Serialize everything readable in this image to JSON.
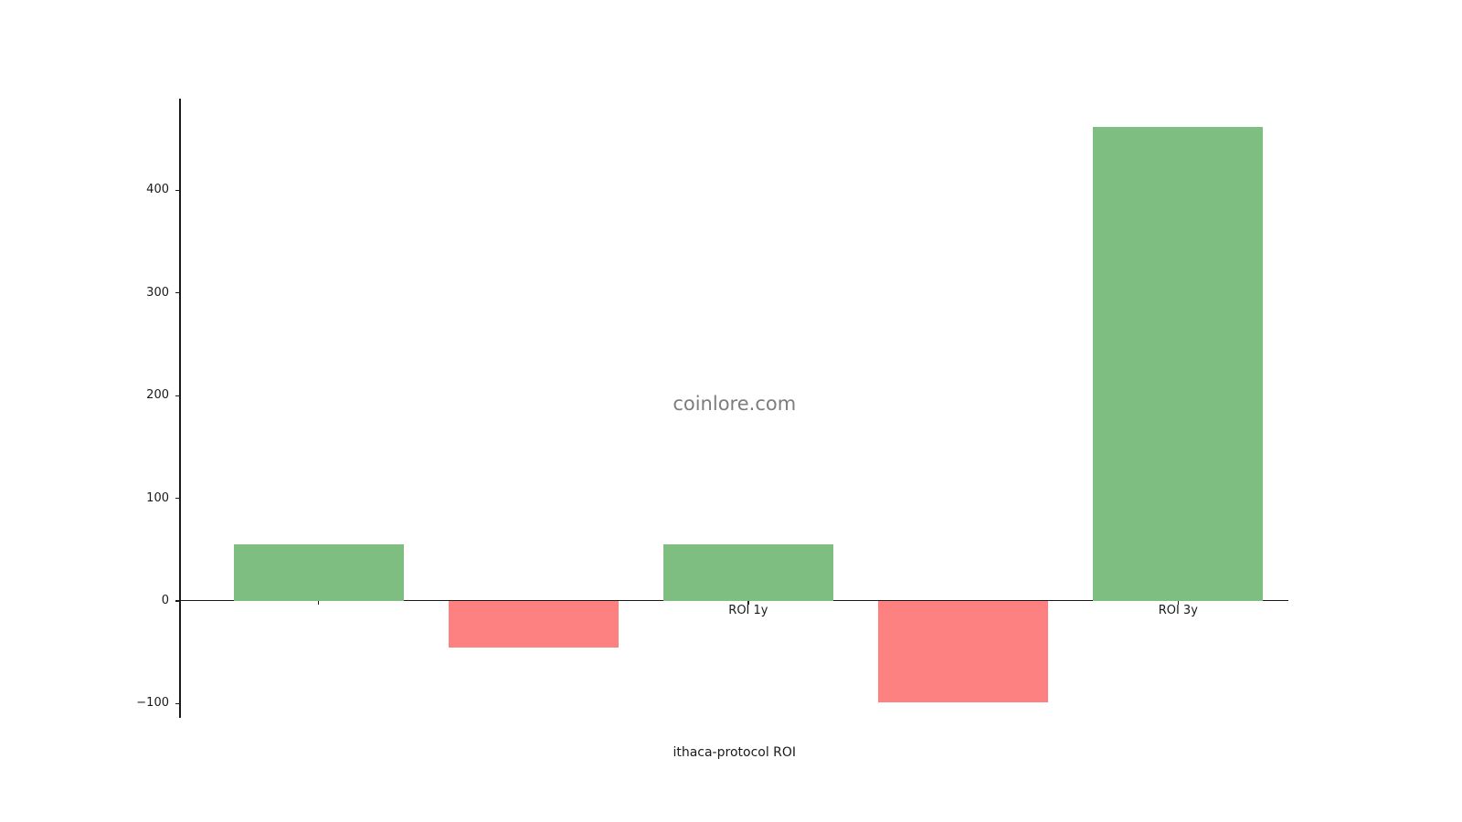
{
  "watermark": {
    "text": "coinlore.com",
    "color": "#7d7d7d"
  },
  "colors": {
    "positive_bar": "#7ebe81",
    "negative_bar": "#fd8181",
    "axis": "#1a1a1a",
    "background": "#ffffff"
  },
  "chart_data": {
    "type": "bar",
    "title": "ithaca-protocol ROI",
    "title_position": "bottom",
    "categories": [
      "",
      "",
      "ROI 1y",
      "",
      "ROI 3y"
    ],
    "values": [
      55,
      -45,
      55,
      -99,
      462
    ],
    "bar_colors": [
      "#7ebe81",
      "#fd8181",
      "#7ebe81",
      "#fd8181",
      "#7ebe81"
    ],
    "yticks": [
      400,
      300,
      200,
      100,
      0,
      -100
    ],
    "ytick_labels": [
      "400",
      "300",
      "200",
      "100",
      "0",
      "−100"
    ],
    "xticks": [
      {
        "index": 0,
        "label": ""
      },
      {
        "index": 2,
        "label": "ROI 1y"
      },
      {
        "index": 4,
        "label": "ROI 3y"
      }
    ],
    "ylim": [
      -115,
      490
    ],
    "xlabel": "",
    "ylabel": "",
    "grid": false,
    "legend": null,
    "baseline": 0,
    "annotations": [
      "coinlore.com"
    ]
  }
}
